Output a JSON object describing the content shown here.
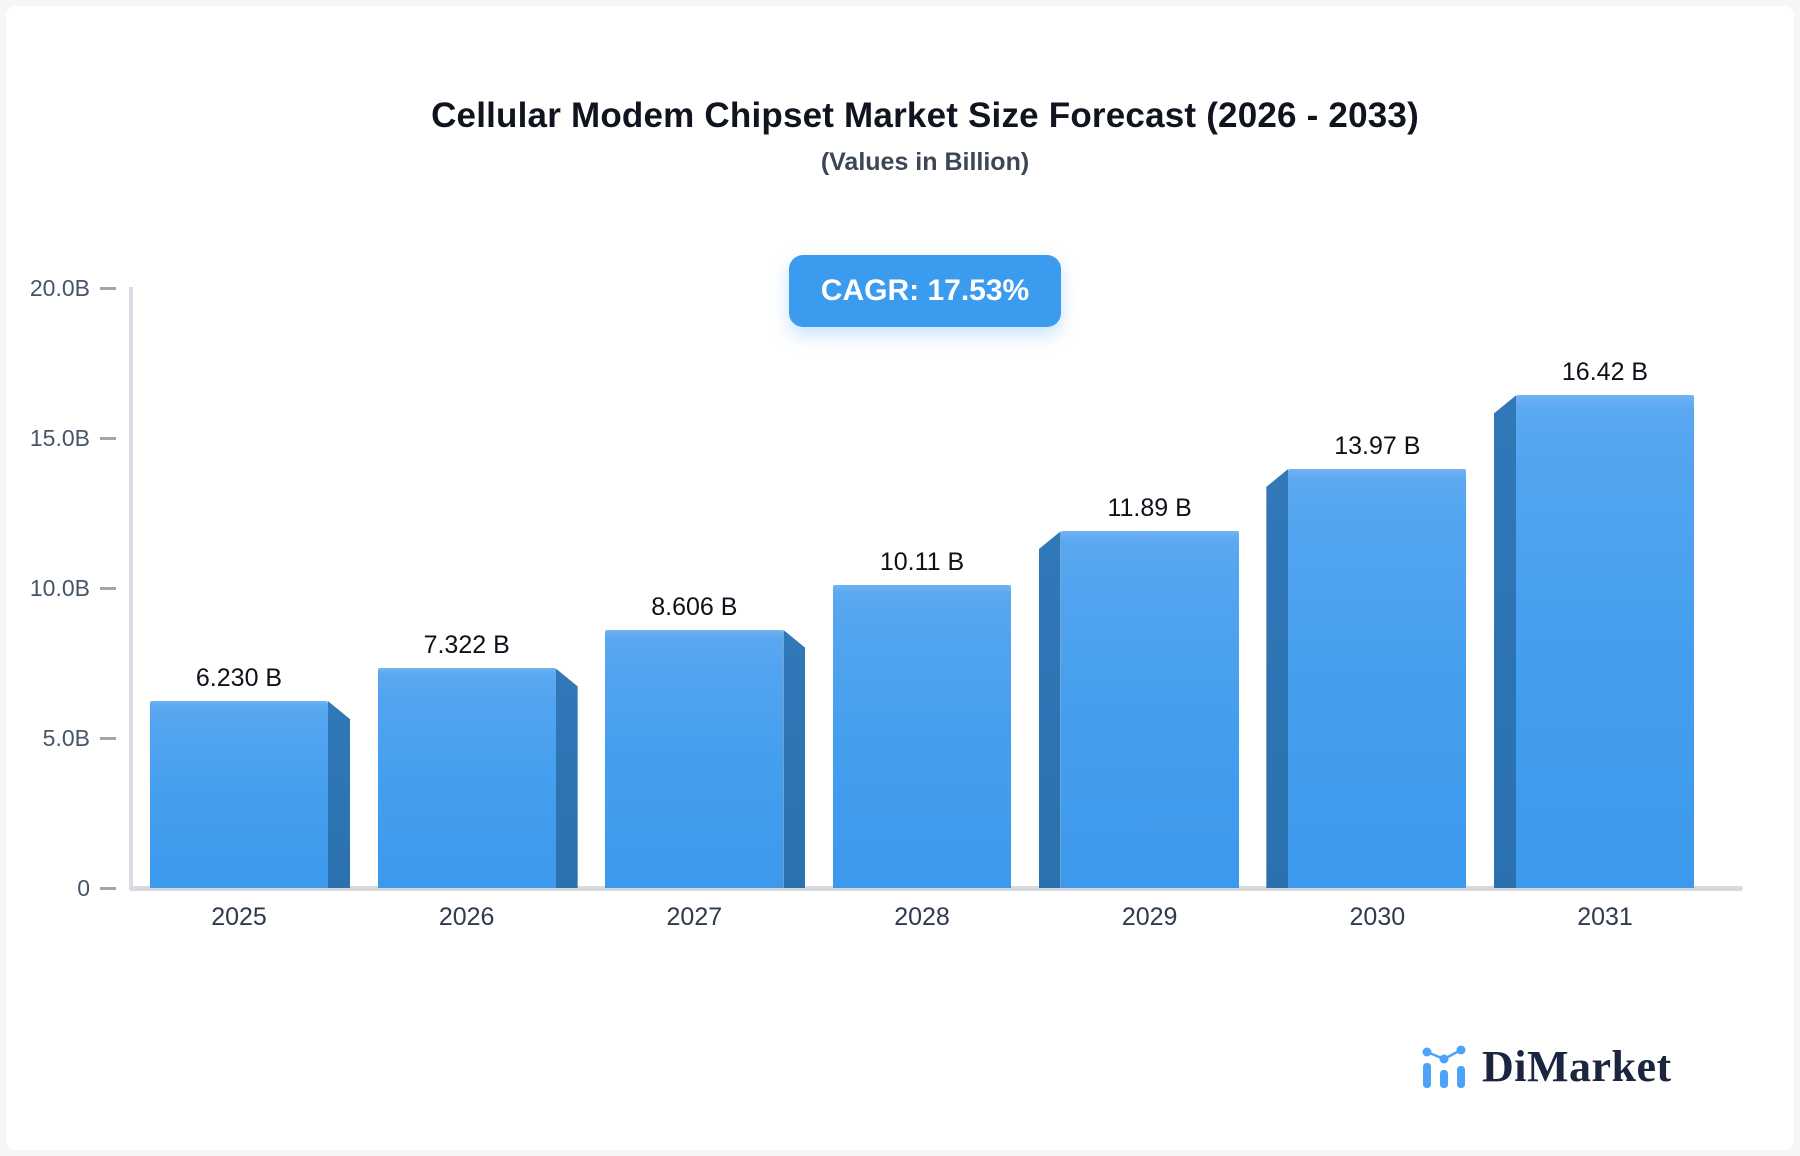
{
  "title": "Cellular Modem Chipset Market Size Forecast (2026 - 2033)",
  "subtitle": "(Values in Billion)",
  "badge": {
    "label": "CAGR: 17.53%",
    "color": "#3b9cef"
  },
  "brand": {
    "name": "DiMarket",
    "icon": "mini-bar-chart-icon",
    "icon_color": "#4da3f5",
    "text_color": "#1c2540"
  },
  "chart_data": {
    "type": "bar",
    "title": "Cellular Modem Chipset Market Size Forecast (2026 - 2033)",
    "subtitle": "(Values in Billion)",
    "categories": [
      "2025",
      "2026",
      "2027",
      "2028",
      "2029",
      "2030",
      "2031"
    ],
    "values": [
      6.23,
      7.322,
      8.606,
      10.11,
      11.89,
      13.97,
      16.42
    ],
    "value_labels": [
      "6.230 B",
      "7.322 B",
      "8.606 B",
      "10.11 B",
      "11.89 B",
      "13.97 B",
      "16.42 B"
    ],
    "xlabel": "",
    "ylabel": "",
    "ylim": [
      0,
      20
    ],
    "grid": false,
    "legend": false,
    "y_ticks": [
      {
        "label": "20.0B",
        "value": 20
      },
      {
        "label": "15.0B",
        "value": 15
      },
      {
        "label": "10.0B",
        "value": 10
      },
      {
        "label": "5.0B",
        "value": 5
      },
      {
        "label": "0",
        "value": 0
      }
    ],
    "annotations": [
      "CAGR: 17.53%"
    ],
    "colors": {
      "bar_face": "#459fee",
      "bar_face_top": "#70b3f4",
      "bar_side_3d": "#2c73b2",
      "axis": "#d6dadf",
      "tick": "#9fa6af",
      "y_label": "#46556a",
      "x_label": "#2e3a4e",
      "value_label": "#0d1219",
      "badge_bg": "#3b9cef",
      "badge_text": "#ffffff"
    }
  }
}
